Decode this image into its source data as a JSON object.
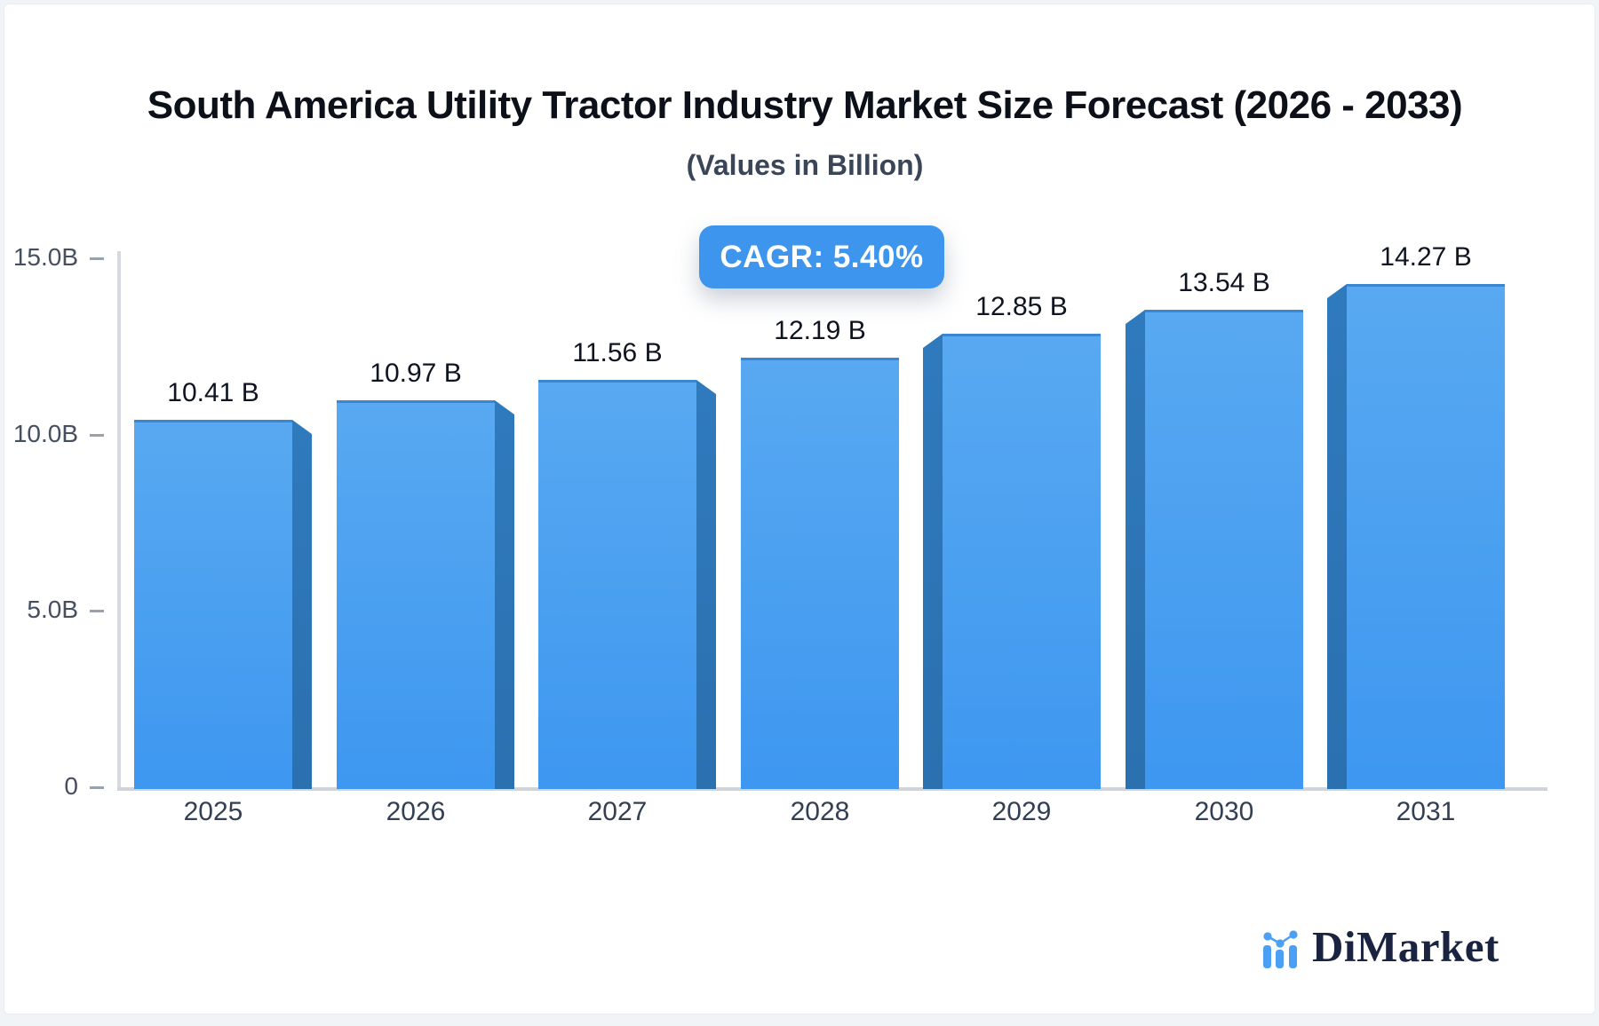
{
  "header": {
    "title": "South America Utility Tractor Industry Market Size Forecast (2026 - 2033)",
    "subtitle": "(Values in Billion)",
    "cagr_label": "CAGR: 5.40%"
  },
  "chart_data": {
    "type": "bar",
    "title": "South America Utility Tractor Industry Market Size Forecast (2026 - 2033)",
    "subtitle": "(Values in Billion)",
    "annotation": "CAGR: 5.40%",
    "categories": [
      "2025",
      "2026",
      "2027",
      "2028",
      "2029",
      "2030",
      "2031"
    ],
    "values": [
      10.41,
      10.97,
      11.56,
      12.19,
      12.85,
      13.54,
      14.27
    ],
    "value_labels": [
      "10.41 B",
      "10.97 B",
      "11.56 B",
      "12.19 B",
      "12.85 B",
      "13.54 B",
      "14.27 B"
    ],
    "xlabel": "",
    "ylabel": "",
    "ylim": [
      0,
      15
    ],
    "y_ticks": [
      {
        "label": "15.0B",
        "value": 15
      },
      {
        "label": "10.0B",
        "value": 10
      },
      {
        "label": "5.0B",
        "value": 5
      },
      {
        "label": "0",
        "value": 0
      }
    ],
    "grid": false,
    "legend": false,
    "bar_style": "3d-extruded"
  },
  "footer": {
    "brand": "DiMarket"
  },
  "colors": {
    "bar_face_top": "#58a9f1",
    "bar_face_bottom": "#3e97f0",
    "bar_face_edge": "#3a86d1",
    "bar_side_top": "#2f7abd",
    "bar_side_bottom": "#2b70af",
    "badge_bg": "#3d95ee",
    "axis_line": "#d6dae0",
    "tick_text": "#454f5f",
    "title_text": "#0b1019",
    "brand_navy": "#1a2340",
    "brand_blue": "#4ba0f5"
  }
}
